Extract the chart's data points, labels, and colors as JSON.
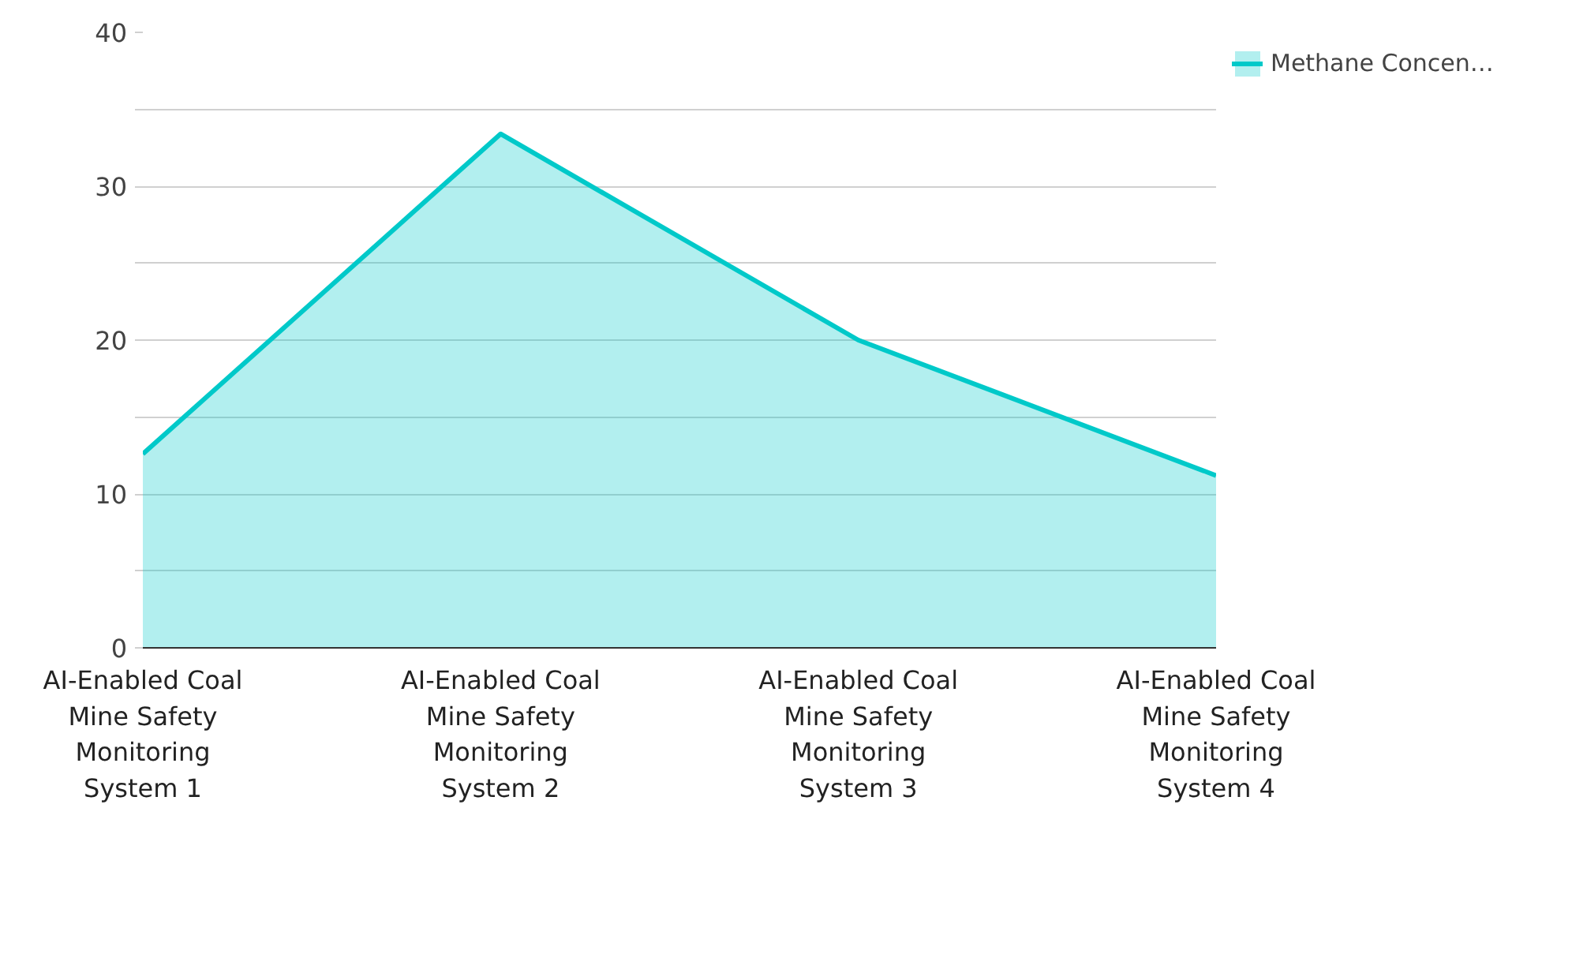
{
  "chart_data": {
    "type": "area",
    "categories": [
      "AI-Enabled Coal Mine Safety Monitoring System 1",
      "AI-Enabled Coal Mine Safety Monitoring System 2",
      "AI-Enabled Coal Mine Safety Monitoring System 3",
      "AI-Enabled Coal Mine Safety Monitoring System 4"
    ],
    "series": [
      {
        "name": "Methane Concen…",
        "color": "#00c9c9",
        "values": [
          12.6,
          33.4,
          20.0,
          11.2
        ]
      }
    ],
    "ylim": [
      0,
      40
    ],
    "yticks": [
      0,
      {
        "value": 5,
        "label": null
      },
      10,
      {
        "value": 15,
        "label": null
      },
      20,
      {
        "value": 25,
        "label": null
      },
      30,
      {
        "value": 35,
        "label": null
      },
      40
    ],
    "grid": "y",
    "legend": "right"
  }
}
